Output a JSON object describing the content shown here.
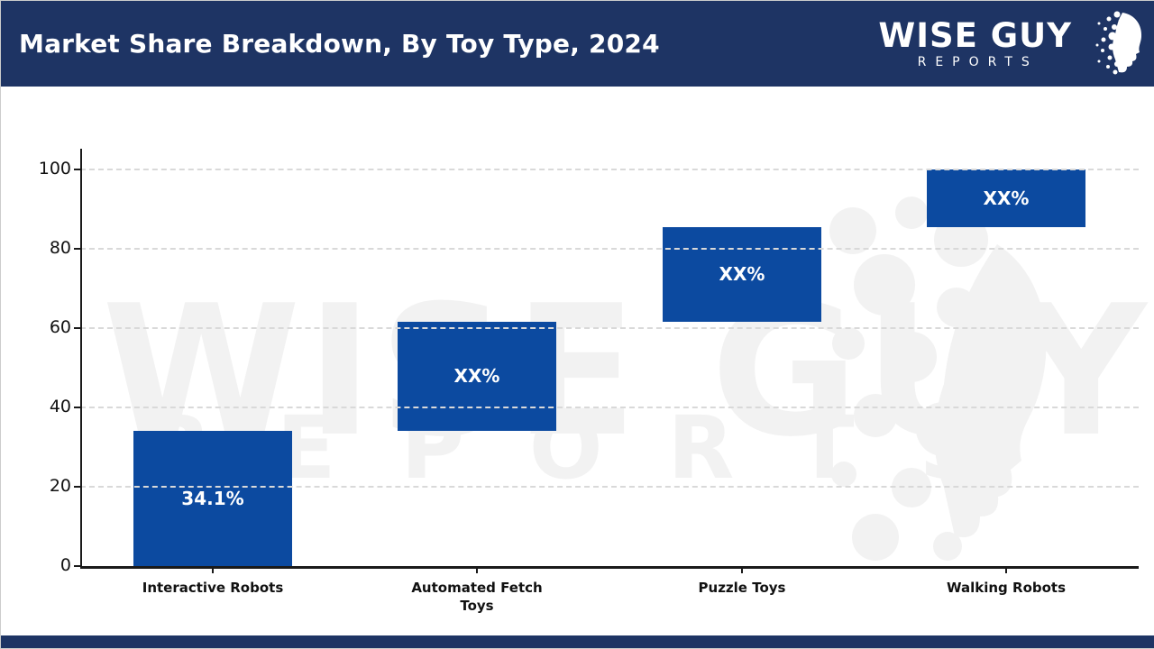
{
  "header": {
    "title": "Market Share Breakdown, By Toy Type, 2024",
    "logo": {
      "line1": "WISE GUY",
      "line2": "REPORTS"
    }
  },
  "watermark": {
    "line1": "WISE GUY",
    "line2": "REPORTS"
  },
  "colors": {
    "header_bg": "#1e3464",
    "footer_bg": "#1e3464",
    "bar": "#0c4aa0",
    "bar_label": "#ffffff",
    "grid": "#d9d9d9",
    "axis": "#1a1a1a",
    "watermark": "#f2f2f2"
  },
  "chart_data": {
    "type": "bar",
    "subtype": "waterfall",
    "title": "Market Share Breakdown, By Toy Type, 2024",
    "categories": [
      "Interactive Robots",
      "Automated Fetch\nToys",
      "Puzzle Toys",
      "Walking Robots"
    ],
    "series": [
      {
        "name": "Market Share (%)",
        "segments": [
          [
            0,
            34.1
          ],
          [
            34.1,
            61.6
          ],
          [
            61.6,
            85.5
          ],
          [
            85.5,
            100
          ]
        ]
      }
    ],
    "bar_labels": [
      "34.1%",
      "XX%",
      "XX%",
      "XX%"
    ],
    "xlabel": "",
    "ylabel": "",
    "yticks": [
      0,
      20,
      40,
      60,
      80,
      100
    ],
    "ylim": [
      0,
      100
    ],
    "grid": "horizontal-dashed",
    "legend": "none"
  }
}
